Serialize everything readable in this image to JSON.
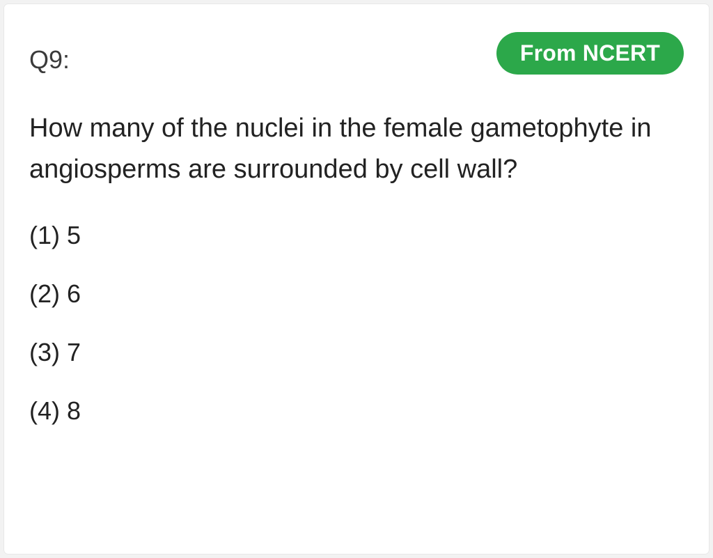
{
  "question": {
    "number": "Q9:",
    "badge": "From NCERT",
    "text": "How many of the nuclei in the female gametophyte in angiosperms are surrounded by cell wall?",
    "options": [
      {
        "label": "(1) 5"
      },
      {
        "label": "(2) 6"
      },
      {
        "label": "(3) 7"
      },
      {
        "label": "(4) 8"
      }
    ]
  },
  "colors": {
    "badge_bg": "#2ca84a",
    "badge_text": "#ffffff",
    "card_bg": "#ffffff",
    "page_bg": "#f2f2f2",
    "text": "#212121"
  }
}
